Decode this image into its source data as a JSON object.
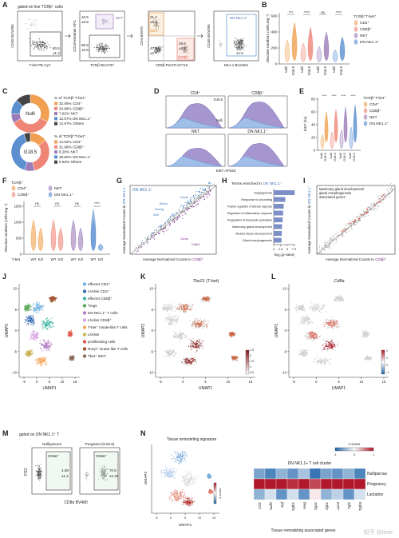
{
  "A": {
    "letter": "A",
    "gate": "gated on live TCRβ⁺ cells",
    "plot1": {
      "y_label": "CD45 BUV395",
      "x_label": "T-bet PE-Cy7",
      "value": "80.6",
      "sd": "±1.2"
    },
    "plot2": {
      "y_label": "CD1d-tetramer APC",
      "x_label": "TCRβ BUV737",
      "gate": "NKT",
      "top_value": "10.9",
      "top_sd": "±0.9",
      "bottom_value": "88.5",
      "bottom_sd": "±0.8"
    },
    "plot3": {
      "y_label": "CD4 BV570",
      "x_label": "CD8β PerCP-eF710",
      "cd4_gate": "CD4⁺",
      "cd8_gate": "CD8β⁺",
      "q1_value": "21.4",
      "q1_sd": "±5.3",
      "q3_value": "47.0",
      "q3_sd": "±2.7",
      "q4_value": "29.8",
      "q4_sd": "±4.1"
    },
    "plot4": {
      "y_label": "CD45 BUV395",
      "x_label": "NK1.1 BUV661",
      "gate": "DN NK1.1⁺",
      "value": "85.8",
      "sd": "±1.5"
    }
  },
  "subsets": {
    "names": [
      "CD4⁺",
      "CD8β⁺",
      "NKT",
      "DN NK1.1⁺"
    ],
    "colors": [
      "#f0a050",
      "#ef8577",
      "#9b7bb8",
      "#5b8fd0"
    ]
  },
  "B": {
    "letter": "B",
    "y_label": "Absolute numbers (cells.mg⁻¹)",
    "y_ticks": [
      "0",
      "200",
      "400",
      "600"
    ],
    "significance": [
      "***",
      "****",
      "ns",
      "****"
    ],
    "groups": [
      "Nulli",
      "G18.5"
    ],
    "legend_title": "TCRβ⁺T-bet⁺"
  },
  "C": {
    "letter": "C",
    "legend_title": "% of TCRβ⁺T-bet⁺",
    "names": [
      "CD4⁺",
      "CD8β⁺",
      "NKT",
      "DN NK1.1⁺",
      "Others"
    ],
    "colors": [
      "#f0a050",
      "#ef8577",
      "#9b7bb8",
      "#5b8fd0",
      "#444444"
    ],
    "donuts": [
      {
        "label": "Nulli",
        "values": [
          32.06,
          34.88,
          7.82,
          12.57,
          12.67
        ],
        "value_labels": [
          "32.06%",
          "34.88%",
          "7.82%",
          "12.57%",
          "12.67%"
        ]
      },
      {
        "label": "G18.5",
        "values": [
          14.62,
          31.98,
          8.28,
          39.6,
          5.53
        ],
        "value_labels": [
          "14.62%",
          "31.98%",
          "8.28%",
          "39.60%",
          "5.53%"
        ]
      }
    ]
  },
  "D": {
    "letter": "D",
    "titles": [
      "CD4⁺",
      "CD8β⁺",
      "NKT",
      "DN NK1.1⁺"
    ],
    "g18": "G18.5",
    "nulli": "Nulli",
    "x_label": "Ki67 AF532"
  },
  "E": {
    "letter": "E",
    "y_label": "Ki67 (%)",
    "y_ticks": [
      "0",
      "20",
      "40",
      "60",
      "80"
    ],
    "significance": [
      "****",
      "****",
      "****",
      "****"
    ],
    "groups": [
      "Nulli",
      "G18.5"
    ]
  },
  "F": {
    "letter": "F",
    "legend_title": "TCRβ⁺",
    "y_label": "Absolute numbers (cells.mg⁻¹)",
    "y_ticks": [
      "0",
      "500",
      "1000",
      "1500"
    ],
    "significance": [
      "ns",
      "ns",
      "ns",
      "****"
    ],
    "row_label": "T-bet",
    "groups": [
      "WT",
      "KO"
    ]
  },
  "G": {
    "letter": "G",
    "title": "DN NK1.1⁺",
    "y_label": "Average Normalized Counts in",
    "y_highlight": "DN NK1.1⁺",
    "x_label": "Average Normalized Counts in",
    "x_highlight": "CD8β⁺",
    "genes": [
      "Gzma",
      "Klrb1c",
      "Fcer1g",
      "Il2rb",
      "Gzmb",
      "Cd8b1"
    ]
  },
  "H": {
    "letter": "H",
    "title": "Terms enriched in",
    "title_highlight": "DN NK1.1⁺",
    "chart_data": {
      "type": "barh",
      "terms": [
        "Angiogenesis",
        "Response to wounding",
        "Positive regulation of defense response",
        "Regulation of inflammatory response",
        "Regulation of leukocyte activation",
        "Mammary gland development",
        "Muscle tissue development",
        "Gland morphogenesis"
      ],
      "values": [
        7.8,
        4.3,
        3.7,
        3.5,
        3.3,
        3.1,
        3.0,
        2.9
      ],
      "color": "#7d8fc7",
      "xlim": [
        0,
        8
      ],
      "xticks": [
        0,
        2.5,
        5,
        7.5
      ],
      "x_label": "-log₁₀(p-value)"
    }
  },
  "I": {
    "letter": "I",
    "annotation": [
      "Mammary gland development/",
      "gland morphogenesis",
      "associated genes"
    ],
    "y_label": "Average Normalized Counts in",
    "y_highlight": "DN NK1.1⁺",
    "x_label": "Average Normalized Counts in",
    "x_highlight": "CD8β⁺"
  },
  "J": {
    "letter": "J",
    "x_label": "UMAP1",
    "y_label": "UMAP2",
    "x_ticks": [
      "-5",
      "0",
      "5",
      "10",
      "15"
    ],
    "y_ticks": [
      "-10",
      "-5",
      "0",
      "5",
      "10"
    ],
    "clusters": [
      {
        "name": "effector CD4⁺",
        "color": "#74b3e0"
      },
      {
        "name": "LN-like CD4⁺",
        "color": "#3b6fb6"
      },
      {
        "name": "effector CD8β⁺",
        "color": "#41b6a6"
      },
      {
        "name": "Tregs",
        "color": "#5aa85a"
      },
      {
        "name": "DN NK1.1⁺ T cells",
        "color": "#b07cc6"
      },
      {
        "name": "LN-like CD8β⁺",
        "color": "#d7a6e0"
      },
      {
        "name": "T-bet⁺ innate-like T cells",
        "color": "#f5a55a"
      },
      {
        "name": "LN-like",
        "color": "#c9b458"
      },
      {
        "name": "proliferating cells",
        "color": "#e05a4f"
      },
      {
        "name": "Rorγt⁺ innate-like T cells",
        "color": "#a0522d"
      },
      {
        "name": "Tbet⁺ iNKT",
        "color": "#8c6d5b"
      }
    ]
  },
  "K": {
    "letter": "K",
    "gene": "Tbx21",
    "title_rest": "(T-bet)",
    "scale_ticks": [
      "0.5",
      "1",
      "1.5",
      "2",
      "2.5"
    ]
  },
  "L": {
    "letter": "L",
    "gene": "Cd8a",
    "scale_ticks": [
      "-1",
      "0",
      "1",
      "2"
    ]
  },
  "M": {
    "letter": "M",
    "title": "gated on DN NK1.1⁺ T",
    "columns": [
      "Nulliparous",
      "Pregnant (G18.5)"
    ],
    "y_label": "FSC",
    "x_label": "CD8α BV480",
    "gate": "CD8α⁺",
    "values": [
      "4.59",
      "70.9"
    ],
    "sds": [
      "±1.4",
      "±2.48"
    ]
  },
  "N": {
    "letter": "N",
    "title": "Tissue remodeling signature",
    "score_label": "z-score",
    "heatmap_title": "DN NK1.1+ T cell cluster",
    "rows": [
      "Nulliparous",
      "Pregnancy",
      "Lactation"
    ],
    "genes": [
      "Csf1",
      "Sulf2",
      "Egf",
      "Tgfb1",
      "Areg",
      "Itga1",
      "Itgb1",
      "Lpo3",
      "Tgfa",
      "Tgfb3"
    ],
    "x_label": "Tissue remodeling associated genes",
    "zlim": [
      -1,
      1
    ],
    "zticks": [
      "-1",
      "0",
      "1"
    ],
    "zscores": [
      [
        -0.6,
        -0.8,
        -0.5,
        -0.7,
        -0.4,
        -0.9,
        -0.6,
        -0.7,
        -0.5,
        -0.8
      ],
      [
        1.1,
        1.0,
        1.2,
        0.9,
        1.1,
        0.8,
        1.1,
        1.0,
        1.2,
        1.0
      ],
      [
        -0.5,
        -0.2,
        -0.7,
        -0.2,
        -0.7,
        0.1,
        -0.5,
        -0.3,
        -0.7,
        -0.2
      ]
    ]
  },
  "watermark": "知乎 @time"
}
